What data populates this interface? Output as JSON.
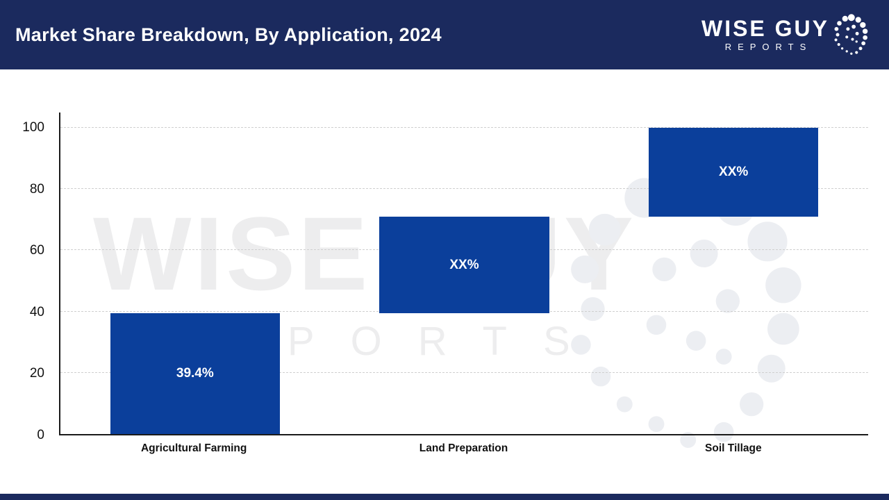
{
  "header": {
    "title": "Market Share Breakdown, By Application, 2024",
    "brand": {
      "line1": "WISE GUY",
      "line2": "REPORTS"
    },
    "bg_color": "#1b2a5e"
  },
  "watermark": {
    "line1": "WISE GUY",
    "line2": "REPORTS"
  },
  "chart_data": {
    "type": "bar",
    "subtype": "waterfall",
    "title": "Market Share Breakdown, By Application, 2024",
    "categories": [
      "Agricultural Farming",
      "Land Preparation",
      "Soil Tillage"
    ],
    "segments": [
      {
        "category": "Agricultural Farming",
        "start": 0,
        "end": 39.4,
        "label": "39.4%"
      },
      {
        "category": "Land Preparation",
        "start": 39.4,
        "end": 71,
        "label": "XX%"
      },
      {
        "category": "Soil Tillage",
        "start": 71,
        "end": 100,
        "label": "XX%"
      }
    ],
    "xlabel": "",
    "ylabel": "",
    "ylim": [
      0,
      100
    ],
    "yticks": [
      0,
      20,
      40,
      60,
      80,
      100
    ],
    "grid": true,
    "legend": false,
    "bar_color": "#0b3f9b",
    "bar_label_color": "#ffffff"
  }
}
